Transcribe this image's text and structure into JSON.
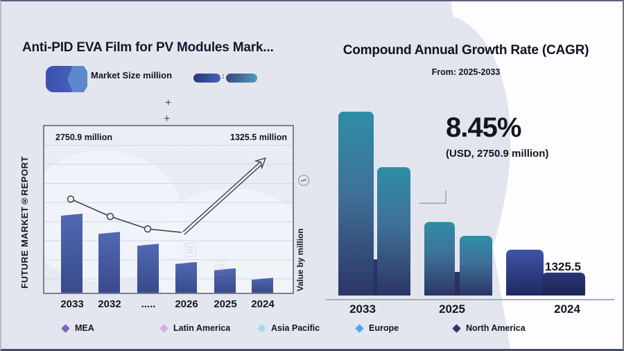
{
  "left_panel": {
    "title": "Anti-PID EVA Film for PV Modules Mark...",
    "legend": {
      "label": "Market Size million",
      "separator": ":"
    },
    "watermark": "FUTURE MARKET®REPORT",
    "chart": {
      "annotation_start": "2750.9 million",
      "annotation_end": "1325.5 million",
      "ylabel": "Value by million",
      "x_labels": [
        "2033",
        "2032",
        ".....",
        "2026",
        "2025",
        "2024"
      ]
    }
  },
  "right_panel": {
    "title": "Compound Annual Growth Rate (CAGR)",
    "subtitle": "From: 2025-2033",
    "cagr": "8.45%",
    "cagr_detail": "(USD, 2750.9 million)",
    "bar_label": "1325.5",
    "x_labels": [
      "2033",
      "2025",
      "2024"
    ]
  },
  "legend": {
    "items": [
      {
        "label": "MEA",
        "color": "#7e63c5"
      },
      {
        "label": "Latin America",
        "color": "#d9aede"
      },
      {
        "label": "Asia Pacific",
        "color": "#a5daea"
      },
      {
        "label": "Europe",
        "color": "#55a7e8"
      },
      {
        "label": "North America",
        "color": "#2e3a6e"
      }
    ]
  },
  "icons": {
    "plus": "+",
    "minus_circle": "circle-with-minus",
    "legend_swatch": "cylinder-icon",
    "legend_markers": "diamond"
  },
  "colors": {
    "background": "#e3e6ef",
    "panel_background": "#eaecf4",
    "left_bar_top": "#5069b3",
    "left_bar_bottom": "#3a4a8a",
    "right_bar_teal": "#2f8ea6",
    "right_bar_navy": "#2c3566",
    "right_bar_blue": "#4055a8",
    "right_bar_dark": "#1f2960",
    "text": "#15151f"
  },
  "chart_data": [
    {
      "type": "bar",
      "title": "Market Size million",
      "categories": [
        "2033",
        "2032",
        ".....",
        "2026",
        "2025",
        "2024"
      ],
      "values": [
        100,
        77,
        62,
        39,
        31,
        19
      ],
      "values_note": "relative heights, no numeric axis shown",
      "annotations": [
        "2750.9 million",
        "1325.5 million"
      ],
      "ylabel": "Value by million",
      "overlay": "declining marker line from 2033 to 2026 then rising double-line arrow to top right",
      "grid": true,
      "legend_position": "top-left"
    },
    {
      "type": "bar",
      "title": "Compound Annual Growth Rate (CAGR)",
      "subtitle": "From: 2025-2033",
      "categories": [
        "2033",
        "2025",
        "2024"
      ],
      "series": [
        {
          "name": "bar-front",
          "values": [
            100,
            40,
            25
          ]
        },
        {
          "name": "bar-back",
          "values": [
            70,
            32.5,
            12.5
          ]
        }
      ],
      "values_note": "relative heights, no numeric axis shown",
      "annotations": [
        "8.45%",
        "(USD, 2750.9 million)",
        "1325.5"
      ],
      "grid": false
    }
  ]
}
